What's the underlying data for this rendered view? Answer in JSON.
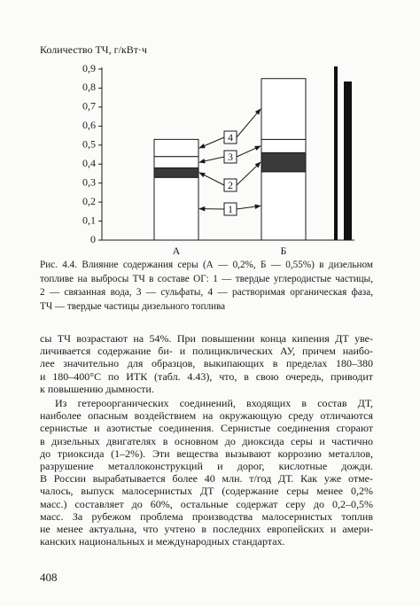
{
  "chart_data": {
    "type": "stacked-bar",
    "y_label": "Количество ТЧ, г/кВт·ч",
    "categories": [
      "А",
      "Б"
    ],
    "series": [
      {
        "name": "1",
        "color": "#ffffff",
        "values": [
          0.33,
          0.36
        ]
      },
      {
        "name": "2",
        "color": "#3a3a3a",
        "values": [
          0.05,
          0.1
        ]
      },
      {
        "name": "3",
        "color": "#ffffff",
        "values": [
          0.06,
          0.07
        ]
      },
      {
        "name": "4",
        "color": "#ffffff",
        "values": [
          0.09,
          0.32
        ]
      }
    ],
    "ylim": [
      0,
      0.9
    ],
    "yticks": [
      0,
      {
        "value": 0.1,
        "label": "0,1"
      },
      {
        "value": 0.2,
        "label": "0,2"
      },
      {
        "value": 0.3,
        "label": "0,3"
      },
      {
        "value": 0.4,
        "label": "0,4"
      },
      {
        "value": 0.5,
        "label": "0,5"
      },
      {
        "value": 0.6,
        "label": "0,6"
      },
      {
        "value": 0.7,
        "label": "0,7"
      },
      {
        "value": 0.8,
        "label": "0,8"
      },
      {
        "value": 0.9,
        "label": "0,9"
      }
    ]
  },
  "caption": [
    "Рис. 4.4. Влияние содержания серы (А — 0,2%, Б — 0,55%) в дизельном",
    "топливе на выбросы ТЧ в составе ОГ: 1 — твердые углеродистые частицы,",
    "2 — связанная вода, 3 — сульфаты, 4 — растворимая органическая фаза,",
    "ТЧ — твердые частицы дизельного топлива"
  ],
  "paragraphs": [
    [
      "сы ТЧ возрастают на 54%. При повышении конца кипения ДТ уве-",
      "личивается содержание би- и полициклических АУ, причем наибо-",
      "лее значительно для образцов, выкипающих в пределах 180–380",
      "и 180–400°С по ИТК (табл. 4.43), что, в свою очередь, приводит",
      "к повышению дымности."
    ],
    [
      "Из гетероорганических соединений, входящих в состав ДТ,",
      "наиболее опасным воздействием на окружающую среду отличаются",
      "сернистые и азотистые соединения. Сернистые соединения сгорают",
      "в дизельных двигателях в основном до диоксида серы и частично",
      "до триоксида (1–2%). Эти вещества вызывают коррозию металлов,",
      "разрушение металлоконструкций и дорог, кислотные дожди.",
      "В России вырабатывается более 40 млн. т/год ДТ. Как уже отме-",
      "чалось, выпуск малосернистых ДТ (содержание серы менее 0,2%",
      "масс.) составляет до 60%, остальные содержат серу до 0,2–0,5%",
      "масс. За рубежом проблема производства малосернистых топлив",
      "не менее актуальна, что учтено в последних европейских и амери-",
      "канских национальных и международных стандартах."
    ]
  ],
  "page_number": "408"
}
